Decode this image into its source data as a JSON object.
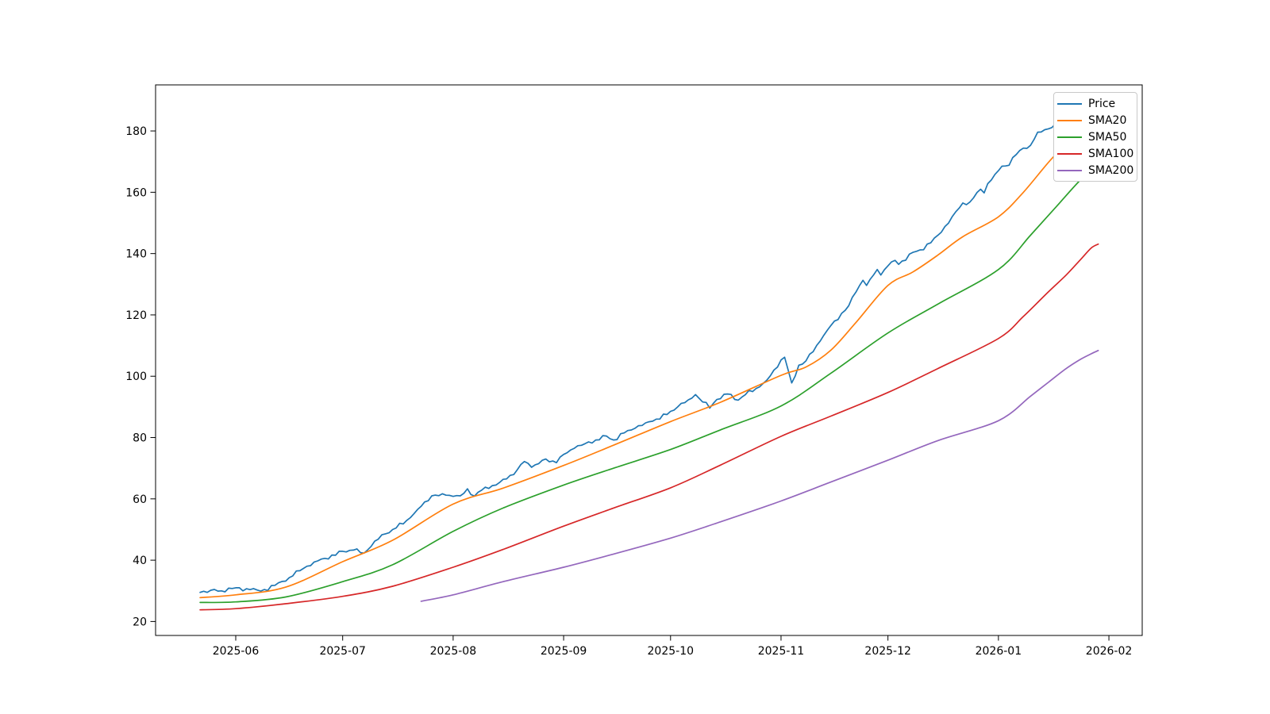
{
  "chart_data": {
    "type": "line",
    "title": "",
    "xlabel": "",
    "ylabel": "",
    "grid": false,
    "background": "#ffffff",
    "xlim": [
      "2025-05-10",
      "2026-02-10"
    ],
    "ylim": [
      15.7,
      195.5
    ],
    "x_axis": {
      "ticks": [
        {
          "label": "2025-06",
          "date": "2025-06-01"
        },
        {
          "label": "2025-07",
          "date": "2025-07-01"
        },
        {
          "label": "2025-08",
          "date": "2025-08-01"
        },
        {
          "label": "2025-09",
          "date": "2025-09-01"
        },
        {
          "label": "2025-10",
          "date": "2025-10-01"
        },
        {
          "label": "2025-11",
          "date": "2025-11-01"
        },
        {
          "label": "2025-12",
          "date": "2025-12-01"
        },
        {
          "label": "2026-01",
          "date": "2026-01-01"
        },
        {
          "label": "2026-02",
          "date": "2026-02-01"
        }
      ]
    },
    "y_axis": {
      "ticks": [
        20,
        40,
        60,
        80,
        100,
        120,
        140,
        160,
        180
      ]
    },
    "legend": {
      "position": "upper right",
      "entries": [
        "Price",
        "SMA20",
        "SMA50",
        "SMA100",
        "SMA200"
      ]
    },
    "series": [
      {
        "name": "Price",
        "color": "#1f77b4",
        "noisy": true,
        "points": [
          [
            "2025-05-22",
            29.5
          ],
          [
            "2025-05-25",
            30.2
          ],
          [
            "2025-05-28",
            30.0
          ],
          [
            "2025-06-01",
            31.0
          ],
          [
            "2025-06-05",
            30.4
          ],
          [
            "2025-06-08",
            29.9
          ],
          [
            "2025-06-12",
            31.8
          ],
          [
            "2025-06-16",
            34.3
          ],
          [
            "2025-06-20",
            37.3
          ],
          [
            "2025-06-23",
            39.4
          ],
          [
            "2025-06-26",
            40.6
          ],
          [
            "2025-06-29",
            41.6
          ],
          [
            "2025-07-01",
            42.9
          ],
          [
            "2025-07-04",
            43.3
          ],
          [
            "2025-07-07",
            42.3
          ],
          [
            "2025-07-10",
            46.2
          ],
          [
            "2025-07-13",
            48.6
          ],
          [
            "2025-07-16",
            50.5
          ],
          [
            "2025-07-19",
            53.0
          ],
          [
            "2025-07-22",
            56.5
          ],
          [
            "2025-07-24",
            59.0
          ],
          [
            "2025-07-26",
            61.0
          ],
          [
            "2025-07-30",
            61.2
          ],
          [
            "2025-08-03",
            61.0
          ],
          [
            "2025-08-05",
            63.3
          ],
          [
            "2025-08-07",
            60.9
          ],
          [
            "2025-08-10",
            63.8
          ],
          [
            "2025-08-13",
            64.5
          ],
          [
            "2025-08-16",
            66.5
          ],
          [
            "2025-08-19",
            69.5
          ],
          [
            "2025-08-21",
            72.2
          ],
          [
            "2025-08-23",
            70.3
          ],
          [
            "2025-08-25",
            71.5
          ],
          [
            "2025-08-27",
            73.0
          ],
          [
            "2025-08-30",
            71.8
          ],
          [
            "2025-09-01",
            74.5
          ],
          [
            "2025-09-04",
            76.5
          ],
          [
            "2025-09-07",
            78.0
          ],
          [
            "2025-09-10",
            79.2
          ],
          [
            "2025-09-13",
            80.5
          ],
          [
            "2025-09-15",
            79.2
          ],
          [
            "2025-09-18",
            81.5
          ],
          [
            "2025-09-21",
            83.0
          ],
          [
            "2025-09-24",
            84.8
          ],
          [
            "2025-09-27",
            86.0
          ],
          [
            "2025-09-30",
            87.5
          ],
          [
            "2025-10-03",
            90.0
          ],
          [
            "2025-10-06",
            92.3
          ],
          [
            "2025-10-08",
            94.0
          ],
          [
            "2025-10-10",
            91.6
          ],
          [
            "2025-10-12",
            89.6
          ],
          [
            "2025-10-14",
            92.4
          ],
          [
            "2025-10-17",
            94.2
          ],
          [
            "2025-10-20",
            92.2
          ],
          [
            "2025-10-22",
            94.0
          ],
          [
            "2025-10-25",
            96.0
          ],
          [
            "2025-10-28",
            98.7
          ],
          [
            "2025-10-30",
            102.0
          ],
          [
            "2025-11-01",
            105.3
          ],
          [
            "2025-11-02",
            106.2
          ],
          [
            "2025-11-04",
            97.8
          ],
          [
            "2025-11-06",
            103.6
          ],
          [
            "2025-11-08",
            105.0
          ],
          [
            "2025-11-10",
            108.0
          ],
          [
            "2025-11-12",
            111.5
          ],
          [
            "2025-11-14",
            115.0
          ],
          [
            "2025-11-16",
            118.0
          ],
          [
            "2025-11-18",
            120.5
          ],
          [
            "2025-11-20",
            123.0
          ],
          [
            "2025-11-22",
            127.4
          ],
          [
            "2025-11-24",
            131.3
          ],
          [
            "2025-11-25",
            129.6
          ],
          [
            "2025-11-28",
            134.8
          ],
          [
            "2025-11-29",
            133.0
          ],
          [
            "2025-12-01",
            136.0
          ],
          [
            "2025-12-03",
            137.8
          ],
          [
            "2025-12-04",
            136.5
          ],
          [
            "2025-12-08",
            140.4
          ],
          [
            "2025-12-10",
            141.2
          ],
          [
            "2025-12-13",
            143.5
          ],
          [
            "2025-12-16",
            147.0
          ],
          [
            "2025-12-19",
            152.0
          ],
          [
            "2025-12-22",
            156.5
          ],
          [
            "2025-12-24",
            156.8
          ],
          [
            "2025-12-27",
            161.0
          ],
          [
            "2025-12-28",
            159.8
          ],
          [
            "2025-12-29",
            162.8
          ],
          [
            "2025-12-31",
            165.8
          ],
          [
            "2026-01-02",
            168.5
          ],
          [
            "2026-01-04",
            168.8
          ],
          [
            "2026-01-06",
            172.3
          ],
          [
            "2026-01-08",
            174.4
          ],
          [
            "2026-01-10",
            175.3
          ],
          [
            "2026-01-12",
            179.6
          ],
          [
            "2026-01-14",
            180.4
          ],
          [
            "2026-01-16",
            181.1
          ],
          [
            "2026-01-20",
            183.5
          ],
          [
            "2026-01-24",
            185.5
          ],
          [
            "2026-01-27",
            186.3
          ],
          [
            "2026-01-29",
            186.0
          ]
        ]
      },
      {
        "name": "SMA20",
        "color": "#ff7f0e",
        "noisy": false,
        "points": [
          [
            "2025-05-22",
            27.8
          ],
          [
            "2025-06-01",
            28.7
          ],
          [
            "2025-06-15",
            31.2
          ],
          [
            "2025-07-01",
            39.5
          ],
          [
            "2025-07-15",
            46.5
          ],
          [
            "2025-08-01",
            58.3
          ],
          [
            "2025-08-15",
            63.5
          ],
          [
            "2025-09-01",
            70.9
          ],
          [
            "2025-09-15",
            77.5
          ],
          [
            "2025-10-01",
            85.2
          ],
          [
            "2025-10-15",
            91.5
          ],
          [
            "2025-11-01",
            100.3
          ],
          [
            "2025-11-08",
            103.0
          ],
          [
            "2025-11-15",
            108.5
          ],
          [
            "2025-11-22",
            117.5
          ],
          [
            "2025-12-01",
            129.6
          ],
          [
            "2025-12-08",
            134.0
          ],
          [
            "2025-12-15",
            139.5
          ],
          [
            "2025-12-22",
            145.5
          ],
          [
            "2026-01-01",
            152.0
          ],
          [
            "2026-01-08",
            160.0
          ],
          [
            "2026-01-16",
            171.0
          ],
          [
            "2026-01-22",
            177.5
          ],
          [
            "2026-01-29",
            182.0
          ]
        ]
      },
      {
        "name": "SMA50",
        "color": "#2ca02c",
        "noisy": false,
        "points": [
          [
            "2025-05-22",
            26.2
          ],
          [
            "2025-06-01",
            26.4
          ],
          [
            "2025-06-15",
            28.0
          ],
          [
            "2025-07-01",
            33.0
          ],
          [
            "2025-07-15",
            38.5
          ],
          [
            "2025-08-01",
            49.4
          ],
          [
            "2025-08-15",
            57.0
          ],
          [
            "2025-09-01",
            64.5
          ],
          [
            "2025-09-15",
            70.0
          ],
          [
            "2025-10-01",
            76.1
          ],
          [
            "2025-10-15",
            82.5
          ],
          [
            "2025-11-01",
            90.3
          ],
          [
            "2025-11-15",
            101.0
          ],
          [
            "2025-12-01",
            114.1
          ],
          [
            "2025-12-15",
            123.5
          ],
          [
            "2026-01-01",
            134.8
          ],
          [
            "2026-01-10",
            146.0
          ],
          [
            "2026-01-17",
            155.0
          ],
          [
            "2026-01-24",
            164.0
          ],
          [
            "2026-01-29",
            169.0
          ]
        ]
      },
      {
        "name": "SMA100",
        "color": "#d62728",
        "noisy": false,
        "points": [
          [
            "2025-05-22",
            23.8
          ],
          [
            "2025-06-01",
            24.2
          ],
          [
            "2025-06-15",
            25.8
          ],
          [
            "2025-07-01",
            28.2
          ],
          [
            "2025-07-15",
            31.5
          ],
          [
            "2025-08-01",
            37.7
          ],
          [
            "2025-08-15",
            43.5
          ],
          [
            "2025-09-01",
            51.1
          ],
          [
            "2025-09-15",
            57.0
          ],
          [
            "2025-10-01",
            63.6
          ],
          [
            "2025-10-15",
            71.0
          ],
          [
            "2025-11-01",
            80.4
          ],
          [
            "2025-11-15",
            87.0
          ],
          [
            "2025-12-01",
            94.7
          ],
          [
            "2025-12-15",
            102.5
          ],
          [
            "2026-01-01",
            112.3
          ],
          [
            "2026-01-08",
            119.5
          ],
          [
            "2026-01-15",
            127.5
          ],
          [
            "2026-01-20",
            133.0
          ],
          [
            "2026-01-24",
            138.0
          ],
          [
            "2026-01-27",
            141.8
          ],
          [
            "2026-01-29",
            143.1
          ]
        ]
      },
      {
        "name": "SMA200",
        "color": "#9467bd",
        "noisy": false,
        "points": [
          [
            "2025-07-23",
            26.6
          ],
          [
            "2025-08-01",
            28.7
          ],
          [
            "2025-08-15",
            33.0
          ],
          [
            "2025-09-01",
            37.7
          ],
          [
            "2025-09-15",
            42.0
          ],
          [
            "2025-10-01",
            47.2
          ],
          [
            "2025-10-15",
            52.5
          ],
          [
            "2025-11-01",
            59.3
          ],
          [
            "2025-11-15",
            65.5
          ],
          [
            "2025-12-01",
            72.6
          ],
          [
            "2025-12-15",
            79.0
          ],
          [
            "2026-01-01",
            85.5
          ],
          [
            "2026-01-10",
            93.5
          ],
          [
            "2026-01-15",
            98.0
          ],
          [
            "2026-01-20",
            102.5
          ],
          [
            "2026-01-24",
            105.5
          ],
          [
            "2026-01-27",
            107.3
          ],
          [
            "2026-01-29",
            108.4
          ]
        ]
      }
    ]
  }
}
